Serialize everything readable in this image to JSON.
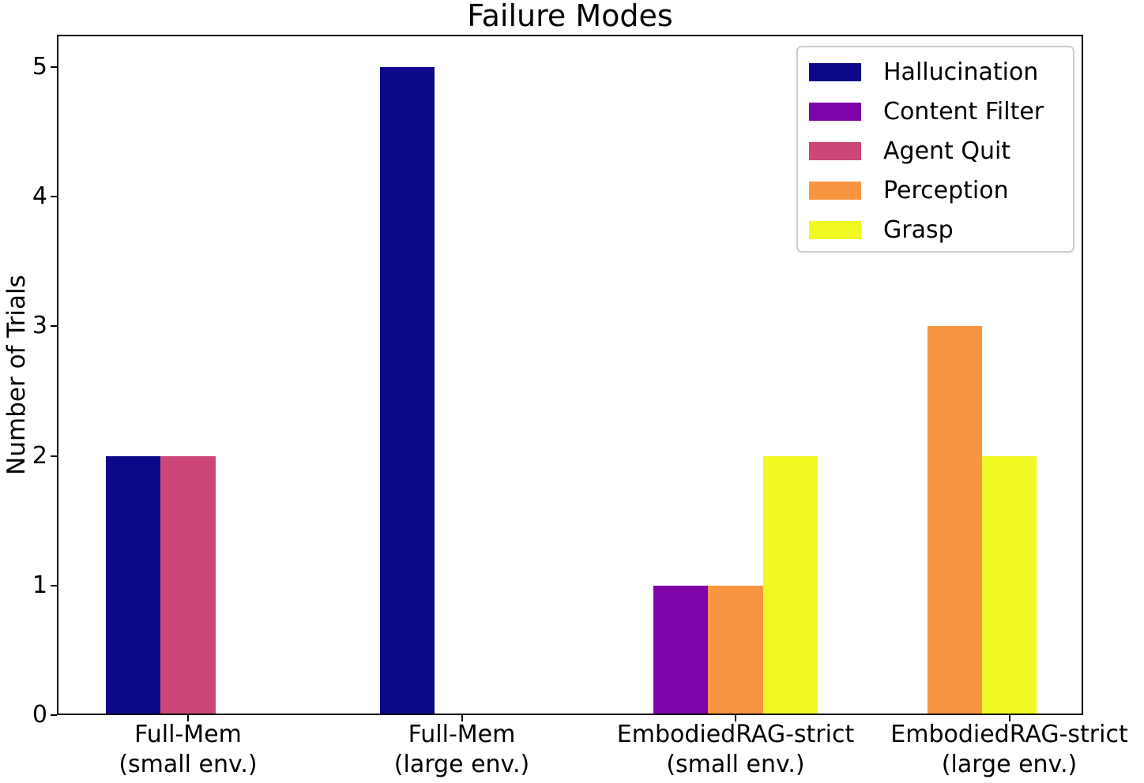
{
  "chart_data": {
    "type": "bar",
    "title": "Failure Modes",
    "xlabel": "",
    "ylabel": "Number of Trials",
    "ylim": [
      0,
      5.25
    ],
    "yticks": [
      "0",
      "1",
      "2",
      "3",
      "4",
      "5"
    ],
    "grid": false,
    "legend_position": "upper right",
    "categories": [
      {
        "line1": "Full-Mem",
        "line2": "(small env.)"
      },
      {
        "line1": "Full-Mem",
        "line2": "(large env.)"
      },
      {
        "line1": "EmbodiedRAG-strict",
        "line2": "(small env.)"
      },
      {
        "line1": "EmbodiedRAG-strict",
        "line2": "(large env.)"
      }
    ],
    "series": [
      {
        "name": "Hallucination",
        "color": "#0d0887",
        "values": [
          2,
          5,
          0,
          0
        ]
      },
      {
        "name": "Content Filter",
        "color": "#7e03a8",
        "values": [
          0,
          0,
          1,
          0
        ]
      },
      {
        "name": "Agent Quit",
        "color": "#cc4778",
        "values": [
          2,
          0,
          0,
          0
        ]
      },
      {
        "name": "Perception",
        "color": "#f89540",
        "values": [
          0,
          0,
          1,
          3
        ]
      },
      {
        "name": "Grasp",
        "color": "#f0f921",
        "values": [
          0,
          0,
          2,
          2
        ]
      }
    ]
  }
}
